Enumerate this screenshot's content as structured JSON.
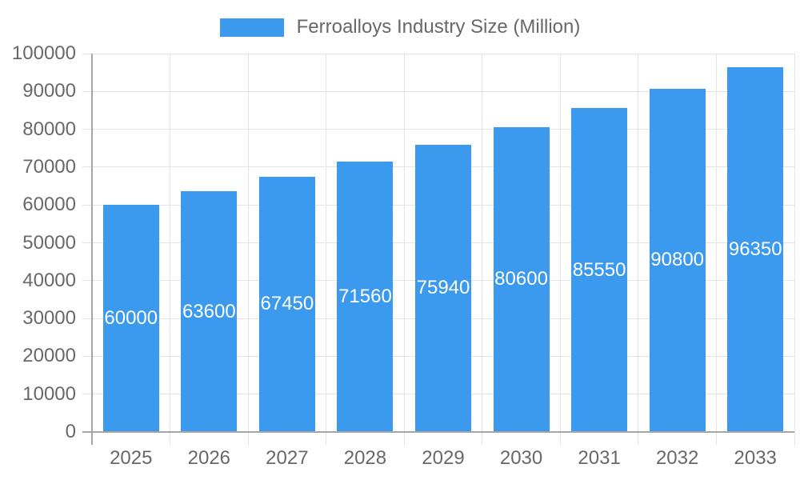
{
  "chart_data": {
    "type": "bar",
    "title": "Ferroalloys Industry Size (Million)",
    "categories": [
      "2025",
      "2026",
      "2027",
      "2028",
      "2029",
      "2030",
      "2031",
      "2032",
      "2033"
    ],
    "values": [
      60000,
      63600,
      67450,
      71560,
      75940,
      80600,
      85550,
      90800,
      96350
    ],
    "bar_labels": [
      "60000",
      "63600",
      "67450",
      "71560",
      "75940",
      "80600",
      "85550",
      "90800",
      "96350"
    ],
    "xlabel": "",
    "ylabel": "",
    "ylim": [
      0,
      100000
    ],
    "y_ticks": [
      0,
      10000,
      20000,
      30000,
      40000,
      50000,
      60000,
      70000,
      80000,
      90000,
      100000
    ],
    "y_tick_labels": [
      "0",
      "10000",
      "20000",
      "30000",
      "40000",
      "50000",
      "60000",
      "70000",
      "80000",
      "90000",
      "100000"
    ],
    "legend_position": "top-center",
    "grid": true,
    "value_label_position": "center-of-bar",
    "colors": {
      "bar": "#3B99EE",
      "bar_value_text": "#ffffff",
      "axis_text": "#686868",
      "legend_text": "#686868",
      "grid_line": "#e4e4e4",
      "axis_line": "#a6a6a6",
      "background": "#ffffff"
    }
  }
}
